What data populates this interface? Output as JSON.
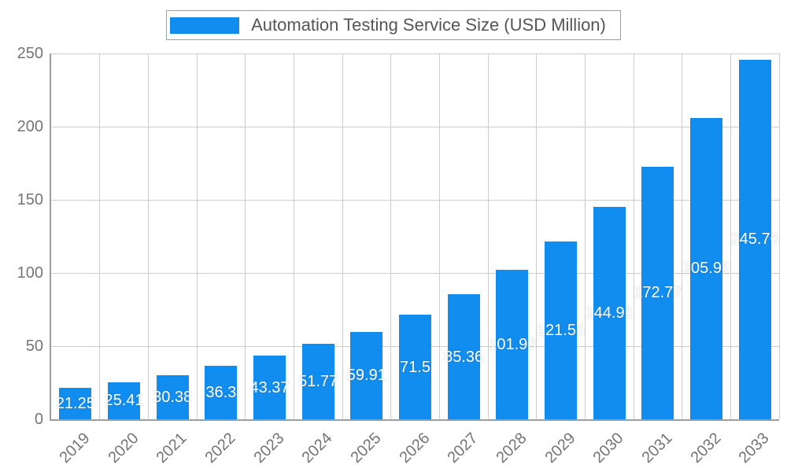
{
  "chart_data": {
    "type": "bar",
    "title": "Automation Testing Service Size (USD Million)",
    "categories": [
      "2019",
      "2020",
      "2021",
      "2022",
      "2023",
      "2024",
      "2025",
      "2026",
      "2027",
      "2028",
      "2029",
      "2030",
      "2031",
      "2032",
      "2033"
    ],
    "values": [
      21.25,
      25.41,
      30.38,
      36.3,
      43.37,
      51.77,
      59.91,
      71.5,
      85.36,
      101.93,
      121.55,
      144.91,
      172.77,
      205.95,
      245.76
    ],
    "xlabel": "",
    "ylabel": "",
    "ylim": [
      0,
      250
    ],
    "yticks": [
      0,
      50,
      100,
      150,
      200,
      250
    ],
    "grid": "horizontal and vertical category boundaries",
    "legend_position": "top-center",
    "legend_entries": [
      "Automation Testing Service Size (USD Million)"
    ],
    "value_labels_position": "inside-bar-centered",
    "colors": {
      "bar": "#118DF0",
      "value_label": "#ffffff",
      "axis_text": "#757575",
      "grid": "#cccccc",
      "axis_line": "#9e9e9e",
      "legend_text": "#565656",
      "legend_border": "#9e9e9e",
      "background": "#ffffff"
    }
  }
}
